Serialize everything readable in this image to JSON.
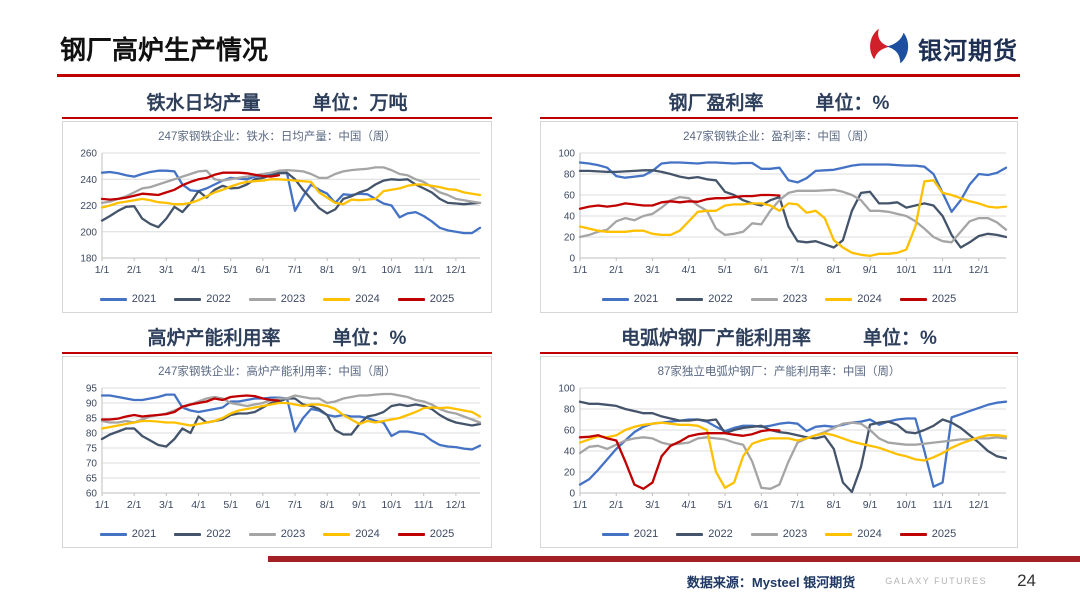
{
  "header": {
    "title": "钢厂高炉生产情况",
    "brand": "银河期货"
  },
  "footer": {
    "source": "数据来源：Mysteel 银河期货",
    "brand_en": "GALAXY FUTURES",
    "page_number": "24"
  },
  "palette": {
    "accent_red": "#c00000",
    "title_navy": "#2e3f5c",
    "footer_bar": "#a32125"
  },
  "chart_data": [
    {
      "type": "line",
      "section_title": "铁水日均产量",
      "unit_label": "单位：万吨",
      "title": "247家钢铁企业：铁水：日均产量：中国（周）",
      "categories": [
        "1/1",
        "2/1",
        "3/1",
        "4/1",
        "5/1",
        "6/1",
        "7/1",
        "8/1",
        "9/1",
        "10/1",
        "11/1",
        "12/1"
      ],
      "tick_every": 4,
      "n_points": 48,
      "ylim": [
        180,
        260
      ],
      "yticks": [
        180,
        200,
        220,
        240,
        260
      ],
      "grid": true,
      "legend_position": "bottom",
      "series": [
        {
          "name": "2021",
          "color": "#4472c4",
          "values": [
            245,
            245.5,
            244.5,
            243,
            242,
            244,
            245.5,
            246.5,
            246.5,
            246,
            236,
            231.5,
            231,
            233,
            236,
            239,
            241,
            240.5,
            240,
            242,
            243,
            244,
            245,
            244.5,
            216,
            227,
            236,
            232,
            229,
            222,
            228.5,
            228,
            229,
            228.5,
            225,
            221.5,
            220,
            211,
            214,
            215,
            212,
            208,
            203,
            201,
            200,
            199,
            199,
            203
          ]
        },
        {
          "name": "2022",
          "color": "#44546a",
          "values": [
            208.5,
            212,
            216,
            219,
            219.5,
            210,
            206,
            203.5,
            210,
            219,
            215,
            222,
            231,
            226,
            232,
            235,
            233,
            233.5,
            236,
            240,
            241,
            243,
            244.5,
            245,
            240,
            232,
            225,
            218,
            214,
            217,
            225,
            227,
            230,
            232,
            236,
            239,
            240,
            239.5,
            240,
            236,
            233,
            230,
            225,
            222,
            221.5,
            221,
            221.5,
            222
          ]
        },
        {
          "name": "2023",
          "color": "#a5a5a5",
          "values": [
            222,
            223,
            225,
            227,
            230,
            233,
            234,
            236,
            238,
            240,
            242,
            244,
            246,
            246.5,
            240,
            239,
            240,
            241,
            242,
            243,
            244,
            245,
            246.5,
            247,
            246.5,
            246,
            244,
            241,
            241,
            244,
            246,
            247,
            247.5,
            248,
            249,
            249,
            247,
            244,
            243,
            240,
            238,
            234,
            230,
            228,
            225,
            224,
            223,
            222
          ]
        },
        {
          "name": "2024",
          "color": "#ffc000",
          "values": [
            218.5,
            220,
            222,
            223,
            224,
            225,
            224,
            222.5,
            222,
            221,
            221,
            222,
            224,
            227,
            230,
            232,
            234.5,
            236.5,
            238,
            238.5,
            239,
            240,
            240,
            239.5,
            239,
            238.5,
            238,
            230,
            226,
            222,
            221,
            224.5,
            224,
            224.5,
            225,
            231,
            232,
            233,
            235,
            236,
            236,
            235,
            234,
            232.5,
            232,
            230,
            229,
            228
          ]
        },
        {
          "name": "2025",
          "color": "#c00000",
          "values": [
            225,
            224.5,
            225,
            226,
            227.5,
            229,
            228.5,
            228,
            230,
            232,
            235.5,
            238,
            240,
            241,
            243.5,
            245,
            245,
            245,
            244.5,
            243.5,
            242.5,
            242,
            243
          ]
        }
      ]
    },
    {
      "type": "line",
      "section_title": "钢厂盈利率",
      "unit_label": "单位：%",
      "title": "247家钢铁企业：盈利率：中国（周）",
      "categories": [
        "1/1",
        "2/1",
        "3/1",
        "4/1",
        "5/1",
        "6/1",
        "7/1",
        "8/1",
        "9/1",
        "10/1",
        "11/1",
        "12/1"
      ],
      "tick_every": 4,
      "n_points": 48,
      "ylim": [
        0,
        100
      ],
      "yticks": [
        0,
        20,
        40,
        60,
        80,
        100
      ],
      "grid": true,
      "legend_position": "bottom",
      "series": [
        {
          "name": "2021",
          "color": "#4472c4",
          "values": [
            91,
            90,
            88.5,
            86,
            78,
            76.5,
            77.5,
            78.5,
            83,
            90,
            91,
            91,
            90.5,
            90,
            91,
            91,
            90.5,
            90,
            90.5,
            90.5,
            85,
            85,
            86,
            74,
            72,
            76,
            83,
            83.5,
            84,
            86,
            88,
            89,
            89,
            89,
            89,
            88.5,
            88,
            88,
            87,
            80,
            62,
            44,
            55,
            70,
            80,
            79,
            81,
            86
          ]
        },
        {
          "name": "2022",
          "color": "#44546a",
          "values": [
            83,
            83,
            82.5,
            82,
            82,
            82.5,
            83,
            83.5,
            83.5,
            82,
            80,
            77.5,
            76,
            77,
            75,
            74,
            63,
            60,
            55,
            52,
            50,
            55,
            58,
            30,
            16,
            15,
            16,
            13,
            10,
            17,
            45,
            62,
            63,
            52,
            52,
            53,
            48,
            50,
            52,
            50,
            40,
            22,
            10,
            15,
            21,
            23,
            22,
            20
          ]
        },
        {
          "name": "2023",
          "color": "#a5a5a5",
          "values": [
            20,
            22,
            25,
            27,
            35,
            38,
            36,
            40,
            42,
            48,
            55,
            58,
            57,
            50,
            45,
            28,
            22,
            23,
            25,
            33,
            32,
            45,
            55,
            62,
            64,
            64,
            64,
            64.5,
            65,
            63,
            60,
            55,
            45,
            45,
            44,
            42,
            40,
            35,
            28,
            20,
            16,
            15,
            25,
            35,
            38,
            38,
            34,
            27
          ]
        },
        {
          "name": "2024",
          "color": "#ffc000",
          "values": [
            30,
            28,
            26,
            25,
            25,
            25,
            26,
            26,
            23,
            22,
            22,
            26,
            35,
            44,
            45,
            45,
            50,
            51,
            51,
            52,
            52,
            50,
            45,
            52,
            51,
            43,
            45,
            38,
            17,
            10,
            5,
            3,
            2,
            4,
            4,
            5,
            8,
            30,
            73,
            74,
            62,
            60,
            57,
            54,
            52,
            49,
            48,
            49
          ]
        },
        {
          "name": "2025",
          "color": "#c00000",
          "values": [
            47,
            49,
            50,
            49,
            50,
            52,
            51,
            50,
            50,
            53,
            54,
            53,
            54,
            53.5,
            56,
            57,
            57,
            58,
            59,
            59,
            60,
            60,
            59.5
          ]
        }
      ]
    },
    {
      "type": "line",
      "section_title": "高炉产能利用率",
      "unit_label": "单位：%",
      "title": "247家钢铁企业：高炉产能利用率：中国（周）",
      "categories": [
        "1/1",
        "2/1",
        "3/1",
        "4/1",
        "5/1",
        "6/1",
        "7/1",
        "8/1",
        "9/1",
        "10/1",
        "11/1",
        "12/1"
      ],
      "tick_every": 4,
      "n_points": 48,
      "ylim": [
        60,
        95
      ],
      "yticks": [
        60,
        65,
        70,
        75,
        80,
        85,
        90,
        95
      ],
      "grid": true,
      "legend_position": "bottom",
      "series": [
        {
          "name": "2021",
          "color": "#4472c4",
          "values": [
            92.5,
            92.5,
            92,
            91.5,
            91,
            91,
            91.5,
            92,
            92.8,
            92.8,
            88.5,
            87.5,
            87,
            87.5,
            88,
            88.5,
            90.5,
            90.5,
            91,
            91.5,
            91.5,
            91.8,
            91.8,
            91.5,
            80.5,
            85,
            88,
            87.5,
            86,
            85.5,
            86,
            85.5,
            85.5,
            85,
            84,
            83.5,
            79,
            80.5,
            80.5,
            80,
            79.5,
            77.5,
            76,
            75.5,
            75.3,
            74.8,
            74.5,
            75.8
          ]
        },
        {
          "name": "2022",
          "color": "#44546a",
          "values": [
            78,
            79.5,
            80.5,
            81.5,
            81.5,
            79,
            77.5,
            76,
            75.5,
            78,
            81.5,
            80,
            85.5,
            83.5,
            84,
            84.5,
            86,
            86.5,
            86.5,
            87,
            88.5,
            90,
            90.5,
            91.5,
            91.5,
            89.5,
            89,
            88,
            86,
            81,
            79.5,
            79.5,
            83,
            85.5,
            86,
            87,
            89,
            89.5,
            89,
            89.5,
            89,
            88,
            86,
            84.5,
            83.5,
            83,
            82.5,
            83
          ]
        },
        {
          "name": "2023",
          "color": "#a5a5a5",
          "values": [
            84,
            83.5,
            83.5,
            84,
            83.5,
            84.5,
            85.5,
            86,
            86.5,
            87.5,
            88.5,
            89.5,
            90.5,
            91.5,
            92,
            91.5,
            90,
            89.5,
            89,
            89.5,
            90,
            91,
            91.5,
            91.5,
            92.5,
            92,
            91.5,
            91.5,
            90,
            90.5,
            91.5,
            92,
            92.5,
            92.5,
            92.8,
            93,
            93,
            92.5,
            92,
            91,
            90.5,
            89.5,
            88,
            87,
            86.5,
            85.5,
            84.5,
            83.5
          ]
        },
        {
          "name": "2024",
          "color": "#ffc000",
          "values": [
            81.5,
            82,
            82.5,
            83,
            83.5,
            84,
            84,
            83.8,
            83.5,
            83.5,
            83,
            82.5,
            83,
            83.5,
            84,
            85,
            86.5,
            87.5,
            88,
            88.5,
            89,
            89.5,
            90,
            90,
            89.5,
            89,
            89.5,
            89.5,
            89,
            88,
            86,
            84.5,
            83,
            84,
            83.5,
            84,
            84.5,
            85,
            86,
            87,
            88.3,
            88.5,
            88.3,
            88.5,
            88,
            87.5,
            87,
            85.5
          ]
        },
        {
          "name": "2025",
          "color": "#c00000",
          "values": [
            84.5,
            84.5,
            84.8,
            85.5,
            86,
            85.5,
            85.8,
            86,
            86.3,
            87,
            88.8,
            89.5,
            90,
            90.5,
            91.5,
            91,
            92,
            92.3,
            92.5,
            92.3,
            91.5,
            91,
            90.8
          ]
        }
      ]
    },
    {
      "type": "line",
      "section_title": "电弧炉钢厂产能利用率",
      "unit_label": "单位：%",
      "title": "87家独立电弧炉钢厂：产能利用率：中国（周）",
      "categories": [
        "1/1",
        "2/1",
        "3/1",
        "4/1",
        "5/1",
        "6/1",
        "7/1",
        "8/1",
        "9/1",
        "10/1",
        "11/1",
        "12/1"
      ],
      "tick_every": 4,
      "n_points": 48,
      "ylim": [
        0,
        100
      ],
      "yticks": [
        0,
        20,
        40,
        60,
        80,
        100
      ],
      "grid": true,
      "legend_position": "bottom",
      "series": [
        {
          "name": "2021",
          "color": "#4472c4",
          "values": [
            8,
            13,
            22,
            32,
            42,
            50,
            58,
            63,
            66,
            67,
            68,
            69,
            70,
            70,
            68,
            63,
            59,
            62,
            64,
            64,
            63,
            64,
            66,
            67,
            66,
            59,
            63,
            64,
            63,
            65,
            67,
            68,
            70,
            65,
            68,
            70,
            71,
            71,
            40,
            6,
            10,
            72,
            75,
            78,
            81,
            84,
            86,
            87
          ]
        },
        {
          "name": "2022",
          "color": "#44546a",
          "values": [
            87,
            85,
            85,
            84,
            83,
            80,
            78,
            76,
            76,
            73,
            71,
            69,
            69,
            70,
            69,
            70,
            57,
            60,
            62,
            63,
            64,
            60,
            58,
            57,
            55,
            53,
            52,
            54,
            42,
            10,
            1,
            25,
            65,
            67,
            68,
            65,
            58,
            57,
            60,
            64,
            70,
            67,
            62,
            55,
            48,
            40,
            35,
            33
          ]
        },
        {
          "name": "2023",
          "color": "#a5a5a5",
          "values": [
            38,
            44,
            45,
            42,
            46,
            50,
            52,
            53,
            52,
            48,
            46,
            47,
            48,
            52,
            53,
            52,
            51,
            48,
            46,
            30,
            5,
            4,
            8,
            30,
            48,
            52,
            55,
            58,
            62,
            66,
            67,
            66,
            60,
            52,
            48,
            47,
            46,
            46,
            47,
            48,
            49,
            50,
            51,
            51,
            52,
            52,
            53,
            52
          ]
        },
        {
          "name": "2024",
          "color": "#ffc000",
          "values": [
            48,
            51,
            54,
            53,
            55,
            60,
            63,
            65,
            66,
            67,
            66,
            65,
            65,
            64,
            60,
            20,
            5,
            10,
            35,
            47,
            50,
            52,
            52,
            52,
            50,
            52,
            55,
            57,
            55,
            52,
            49,
            47,
            45,
            43,
            40,
            37,
            35,
            32,
            31,
            34,
            38,
            43,
            47,
            50,
            53,
            55,
            55,
            54
          ]
        },
        {
          "name": "2025",
          "color": "#c00000",
          "values": [
            53,
            53.5,
            55,
            52,
            50,
            30,
            8,
            4,
            10,
            35,
            45,
            49,
            54,
            56,
            57,
            57,
            57,
            55.5,
            54.5,
            56,
            59,
            60,
            59.5
          ]
        }
      ]
    }
  ]
}
